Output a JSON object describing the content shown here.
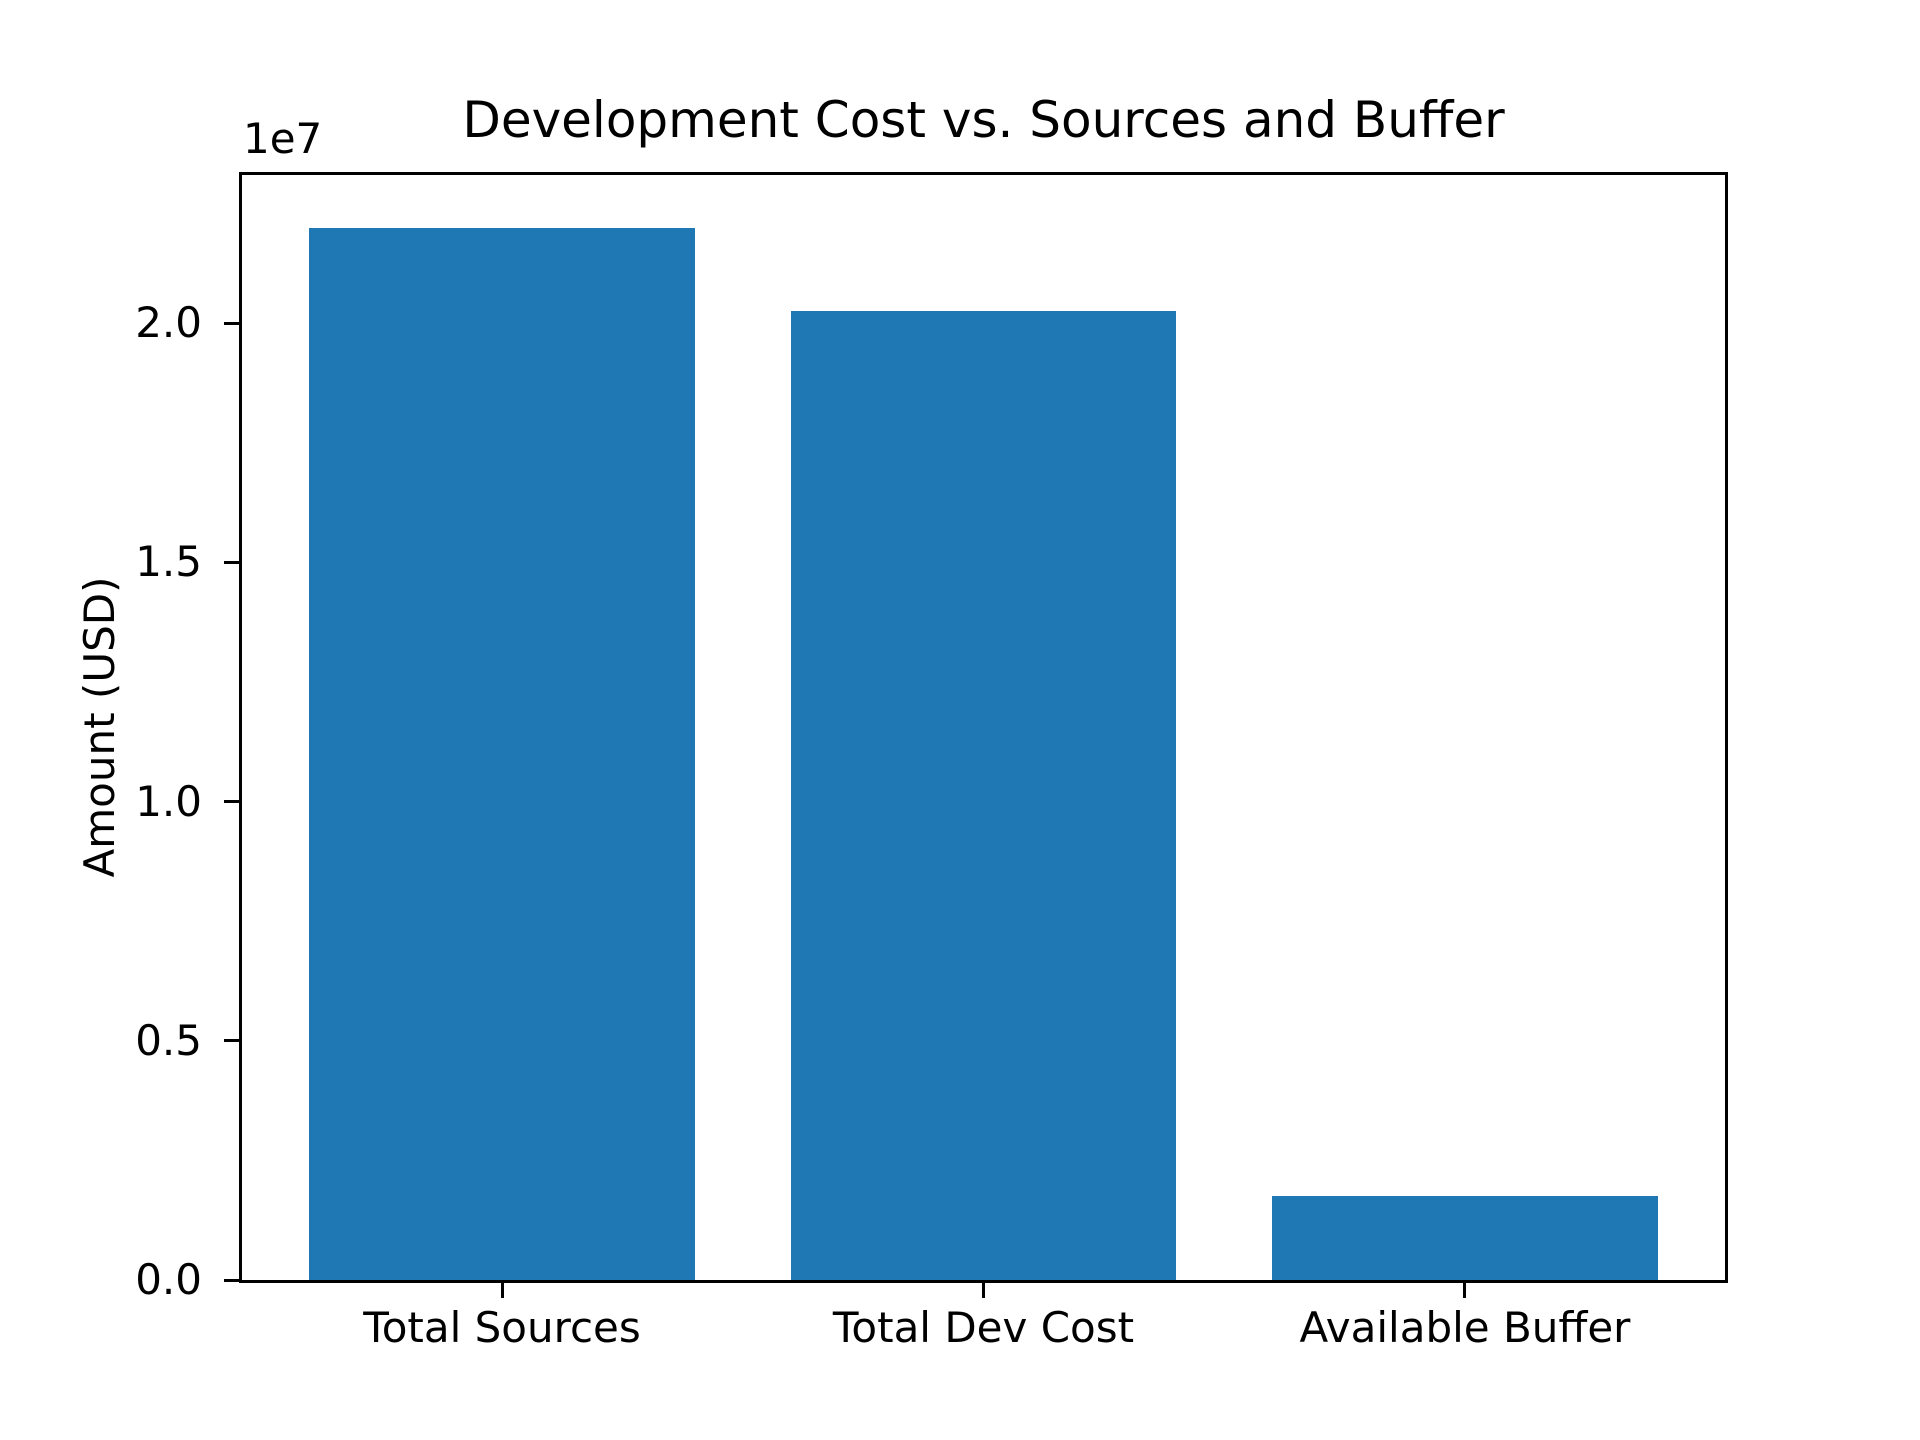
{
  "figure": {
    "background_color": "#ffffff",
    "text_color": "#000000"
  },
  "chart_data": {
    "type": "bar",
    "title": "Development Cost vs. Sources and Buffer",
    "xlabel": "",
    "ylabel": "Amount (USD)",
    "categories": [
      "Total Sources",
      "Total Dev Cost",
      "Available Buffer"
    ],
    "values": [
      22000000,
      20250000,
      1750000
    ],
    "bar_color": "#1f77b4",
    "ylim": [
      0,
      23100000
    ],
    "y_ticks": [
      0,
      5000000,
      10000000,
      15000000,
      20000000
    ],
    "y_tick_labels": [
      "0.0",
      "0.5",
      "1.0",
      "1.5",
      "2.0"
    ],
    "y_offset_text": "1e7",
    "grid": false,
    "legend_position": "none"
  }
}
